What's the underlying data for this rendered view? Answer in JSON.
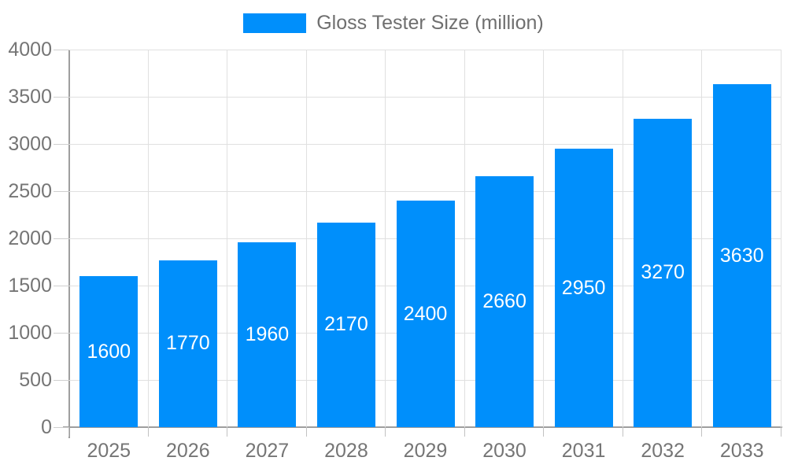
{
  "chart_data": {
    "type": "bar",
    "legend": {
      "label": "Gloss Tester Size (million)",
      "position": "top-center",
      "swatch": "blue-rect"
    },
    "categories": [
      "2025",
      "2026",
      "2027",
      "2028",
      "2029",
      "2030",
      "2031",
      "2032",
      "2033"
    ],
    "series": [
      {
        "name": "Gloss Tester Size (million)",
        "values": [
          1600,
          1770,
          1960,
          2170,
          2400,
          2660,
          2950,
          3270,
          3630
        ]
      }
    ],
    "bar_value_labels": [
      "1600",
      "1770",
      "1960",
      "2170",
      "2400",
      "2660",
      "2950",
      "3270",
      "3630"
    ],
    "xlabel": "",
    "ylabel": "",
    "ylim": [
      0,
      4000
    ],
    "yticks": [
      0,
      500,
      1000,
      1500,
      2000,
      2500,
      3000,
      3500,
      4000
    ],
    "grid": {
      "horizontal": true,
      "vertical": true
    },
    "value_label_position": "centered-inside-bar",
    "colors": {
      "bar": "#008FFB",
      "bar_label": "#ffffff",
      "axis_text": "#757575",
      "legend_text": "#6f6f6f",
      "gridline": "#e0e0e0",
      "ytick": "#cfcfcf",
      "xtick": "#c2c2c2",
      "axis_line": "#9e9e9e",
      "background": "#ffffff"
    }
  }
}
